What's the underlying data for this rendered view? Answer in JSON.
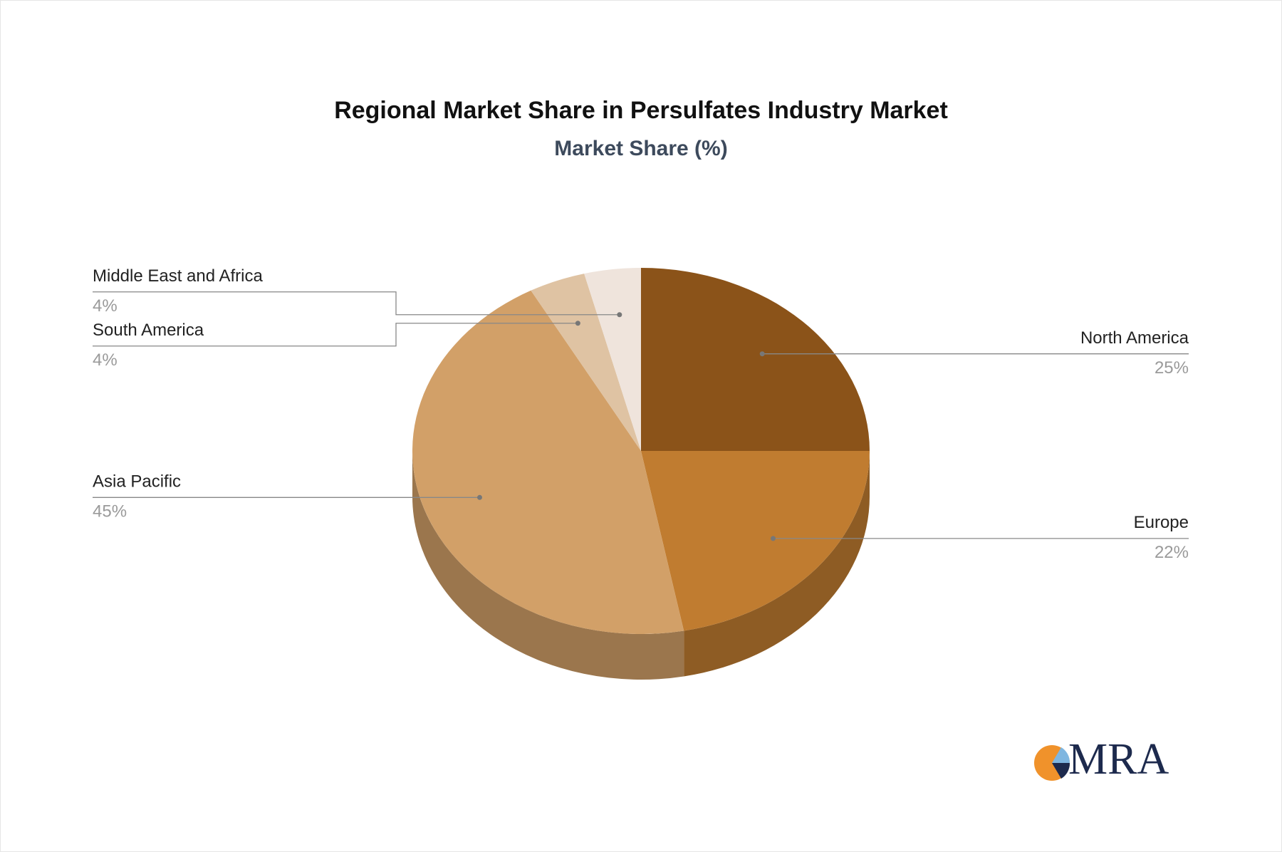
{
  "chart_data": {
    "type": "pie",
    "title": "Regional Market Share in Persulfates Industry Market",
    "subtitle": "Market Share (%)",
    "categories": [
      "North America",
      "Europe",
      "Asia Pacific",
      "South America",
      "Middle East and Africa"
    ],
    "values": [
      25,
      22,
      45,
      4,
      4
    ],
    "value_labels": [
      "25%",
      "22%",
      "45%",
      "4%",
      "4%"
    ],
    "colors": [
      "#8b5319",
      "#c07c30",
      "#d2a068",
      "#dfc3a3",
      "#efe4dc"
    ]
  },
  "logo": "MRA"
}
